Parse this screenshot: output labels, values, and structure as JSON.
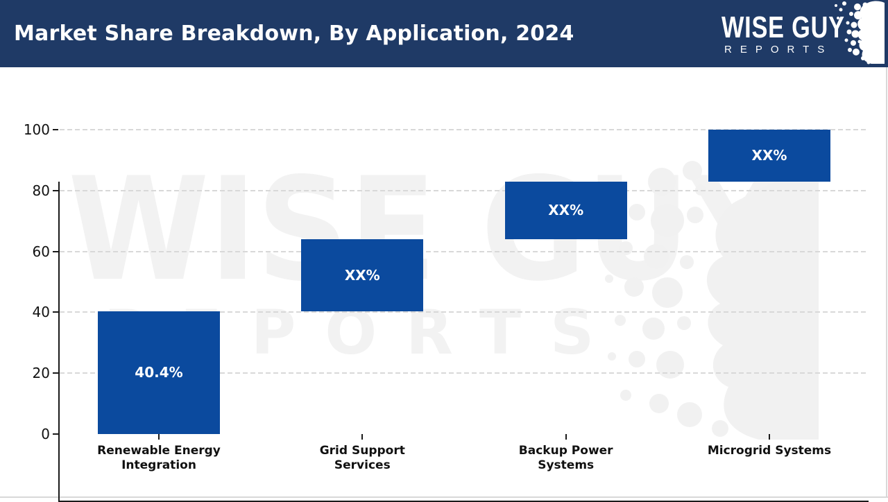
{
  "header": {
    "title": "Market Share Breakdown, By Application, 2024",
    "bg_color": "#1F3A66",
    "logo": {
      "line1": "WISE GUY",
      "line2": "REPORTS"
    }
  },
  "watermark": {
    "line1": "WISE GUY",
    "line2": "REPORTS"
  },
  "chart_data": {
    "type": "bar",
    "subtype": "waterfall",
    "title": "Market Share Breakdown, By Application, 2024",
    "categories": [
      "Renewable Energy Integration",
      "Grid Support Services",
      "Backup Power Systems",
      "Microgrid Systems"
    ],
    "category_lines": [
      [
        "Renewable Energy",
        "Integration"
      ],
      [
        "Grid Support",
        "Services"
      ],
      [
        "Backup Power",
        "Systems"
      ],
      [
        "Microgrid Systems"
      ]
    ],
    "segments": [
      {
        "start": 0,
        "end": 40.4,
        "label": "40.4%"
      },
      {
        "start": 40.4,
        "end": 64,
        "label": "XX%"
      },
      {
        "start": 64,
        "end": 83,
        "label": "XX%"
      },
      {
        "start": 83,
        "end": 100,
        "label": "XX%"
      }
    ],
    "xlabel": "",
    "ylabel": "",
    "ylim": [
      0,
      100
    ],
    "yticks": [
      0,
      20,
      40,
      60,
      80,
      100
    ],
    "grid": "horizontal dashed",
    "legend": "none",
    "bar_color": "#0B4A9E",
    "bar_label_color": "#FFFFFF",
    "axis_color": "#1a1a1a",
    "gridline_color": "#D8D8D8"
  }
}
